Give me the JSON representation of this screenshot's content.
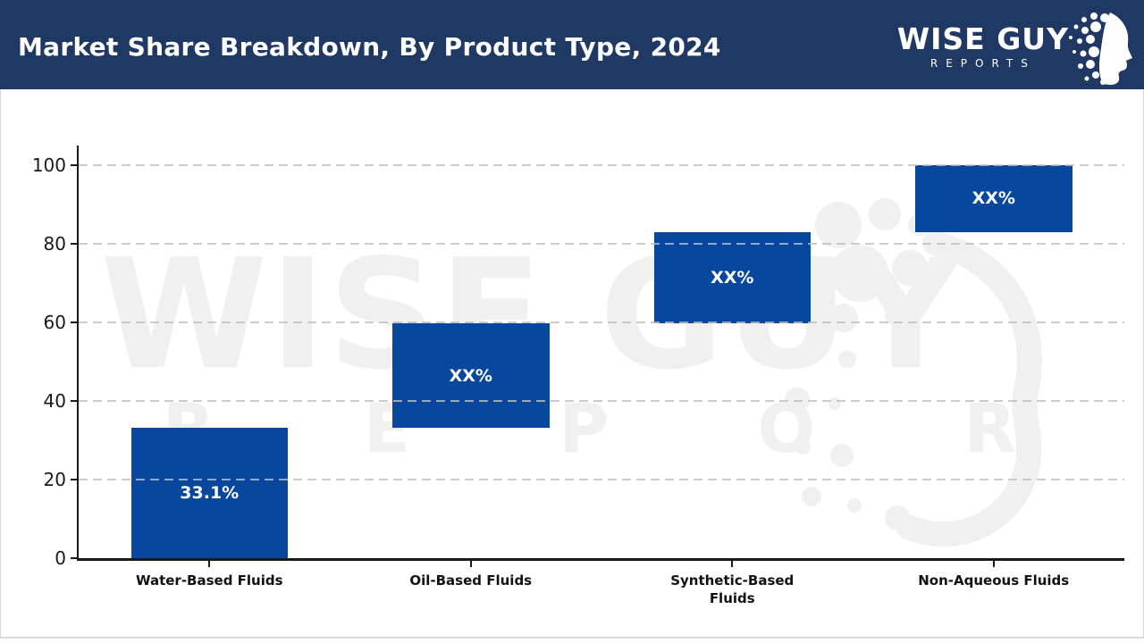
{
  "header": {
    "title": "Market Share Breakdown, By Product Type, 2024",
    "logo_line1": "WISE GUY",
    "logo_line2": "REPORTS",
    "bg_color": "#1f3864"
  },
  "watermark": {
    "line1": "WISE GUY",
    "line2": "R E P O R T S"
  },
  "chart_data": {
    "type": "bar",
    "subtype": "waterfall-segments",
    "title": "Market Share Breakdown, By Product Type, 2024",
    "categories": [
      "Water-Based Fluids",
      "Oil-Based Fluids",
      "Synthetic-Based Fluids",
      "Non-Aqueous Fluids"
    ],
    "segments": [
      {
        "start": 0,
        "end": 33.1,
        "label": "33.1%"
      },
      {
        "start": 33.1,
        "end": 59.8,
        "label": "XX%"
      },
      {
        "start": 59.8,
        "end": 83.0,
        "label": "XX%"
      },
      {
        "start": 83.0,
        "end": 100,
        "label": "XX%"
      }
    ],
    "y_ticks": [
      0,
      20,
      40,
      60,
      80,
      100
    ],
    "ylim": [
      0,
      105
    ],
    "xlabel": "",
    "ylabel": "",
    "grid": "horizontal-dashed-over-bars",
    "legend": "none",
    "bar_color": "#08479e",
    "bar_label_color": "#ffffff",
    "axis_color": "#1a1a1a"
  }
}
